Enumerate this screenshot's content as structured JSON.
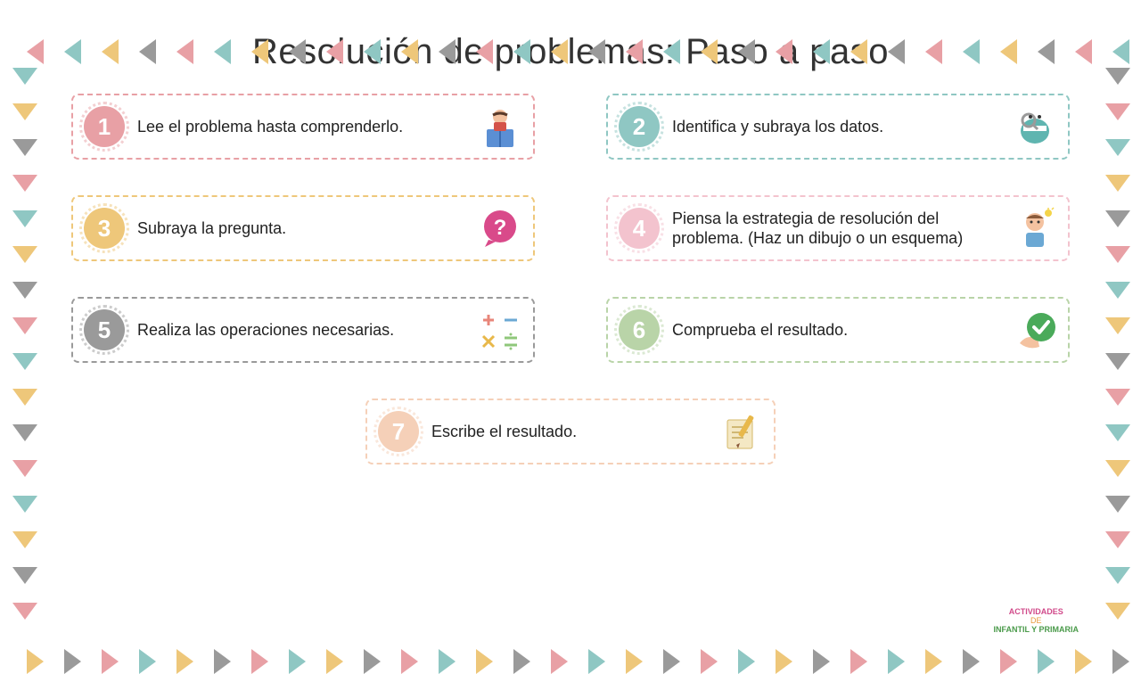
{
  "title": "Resolución de problemas: Paso a paso",
  "colors": {
    "pink": "#e8a0a5",
    "teal": "#8fc7c3",
    "yellow": "#eec77a",
    "lightpink": "#f3c3ce",
    "gray": "#9a9a9a",
    "green": "#b9d4a8",
    "peach": "#f5d0b8"
  },
  "triangle_colors": [
    "#e8a0a5",
    "#8fc7c3",
    "#eec77a",
    "#9a9a9a"
  ],
  "triangle_size": 14,
  "steps": [
    {
      "num": "1",
      "text": "Lee el problema hasta comprenderlo.",
      "color": "#e8a0a5",
      "icon": "book"
    },
    {
      "num": "2",
      "text": "Identifica y subraya los datos.",
      "color": "#8fc7c3",
      "icon": "search"
    },
    {
      "num": "3",
      "text": "Subraya la pregunta.",
      "color": "#eec77a",
      "icon": "question"
    },
    {
      "num": "4",
      "text": "Piensa la estrategia de resolución del problema. (Haz un dibujo o un esquema)",
      "color": "#f3c3ce",
      "icon": "think"
    },
    {
      "num": "5",
      "text": "Realiza las operaciones necesarias.",
      "color": "#9a9a9a",
      "icon": "math"
    },
    {
      "num": "6",
      "text": "Comprueba el resultado.",
      "color": "#b9d4a8",
      "icon": "check"
    },
    {
      "num": "7",
      "text": "Escribe el resultado.",
      "color": "#f5d0b8",
      "icon": "write"
    }
  ],
  "logo": {
    "line1": "ACTIVIDADES",
    "line2": "DE",
    "line3": "INFANTIL Y PRIMARIA",
    "color1": "#d14a8a",
    "color2": "#e89a3c",
    "color3": "#4a9a4a"
  }
}
